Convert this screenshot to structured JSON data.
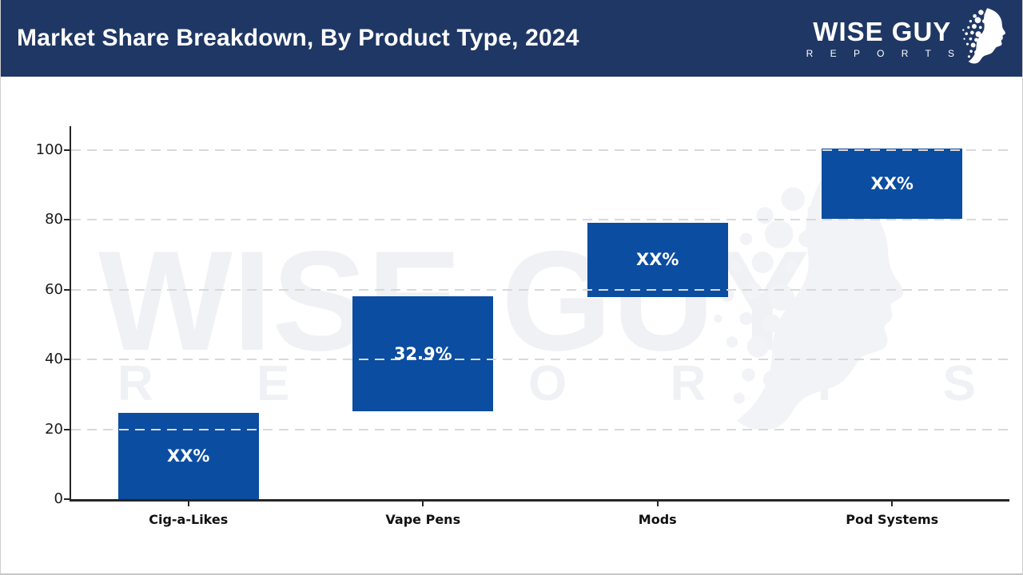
{
  "header": {
    "title": "Market Share Breakdown, By Product Type, 2024",
    "brand": {
      "line1": "WISE GUY",
      "line2": "R E P O R T S"
    },
    "bg_color": "#1f3764"
  },
  "watermark": {
    "line1": "WISE GUY",
    "line2": "R E P O R T S"
  },
  "chart_data": {
    "type": "bar",
    "subtype": "waterfall-floating-bars",
    "title": "Market Share Breakdown, By Product Type, 2024",
    "categories": [
      "Cig-a-Likes",
      "Vape Pens",
      "Mods",
      "Pod Systems"
    ],
    "segments": [
      {
        "category": "Cig-a-Likes",
        "start": 0,
        "end": 24.7,
        "label": "XX%"
      },
      {
        "category": "Vape Pens",
        "start": 25.1,
        "end": 58.0,
        "label": "32.9%",
        "value": 32.9
      },
      {
        "category": "Mods",
        "start": 57.9,
        "end": 79.1,
        "label": "XX%"
      },
      {
        "category": "Pod Systems",
        "start": 80.2,
        "end": 100.3,
        "label": "XX%"
      }
    ],
    "ylabel": "",
    "xlabel": "",
    "ylim": [
      0,
      100
    ],
    "yticks": [
      0,
      20,
      40,
      60,
      80,
      100
    ],
    "grid": "horizontal dashed, drawn over bars",
    "legend": "none",
    "bar_color": "#0b4da1",
    "bar_label_color": "#ffffff",
    "axis_color": "#262626"
  }
}
